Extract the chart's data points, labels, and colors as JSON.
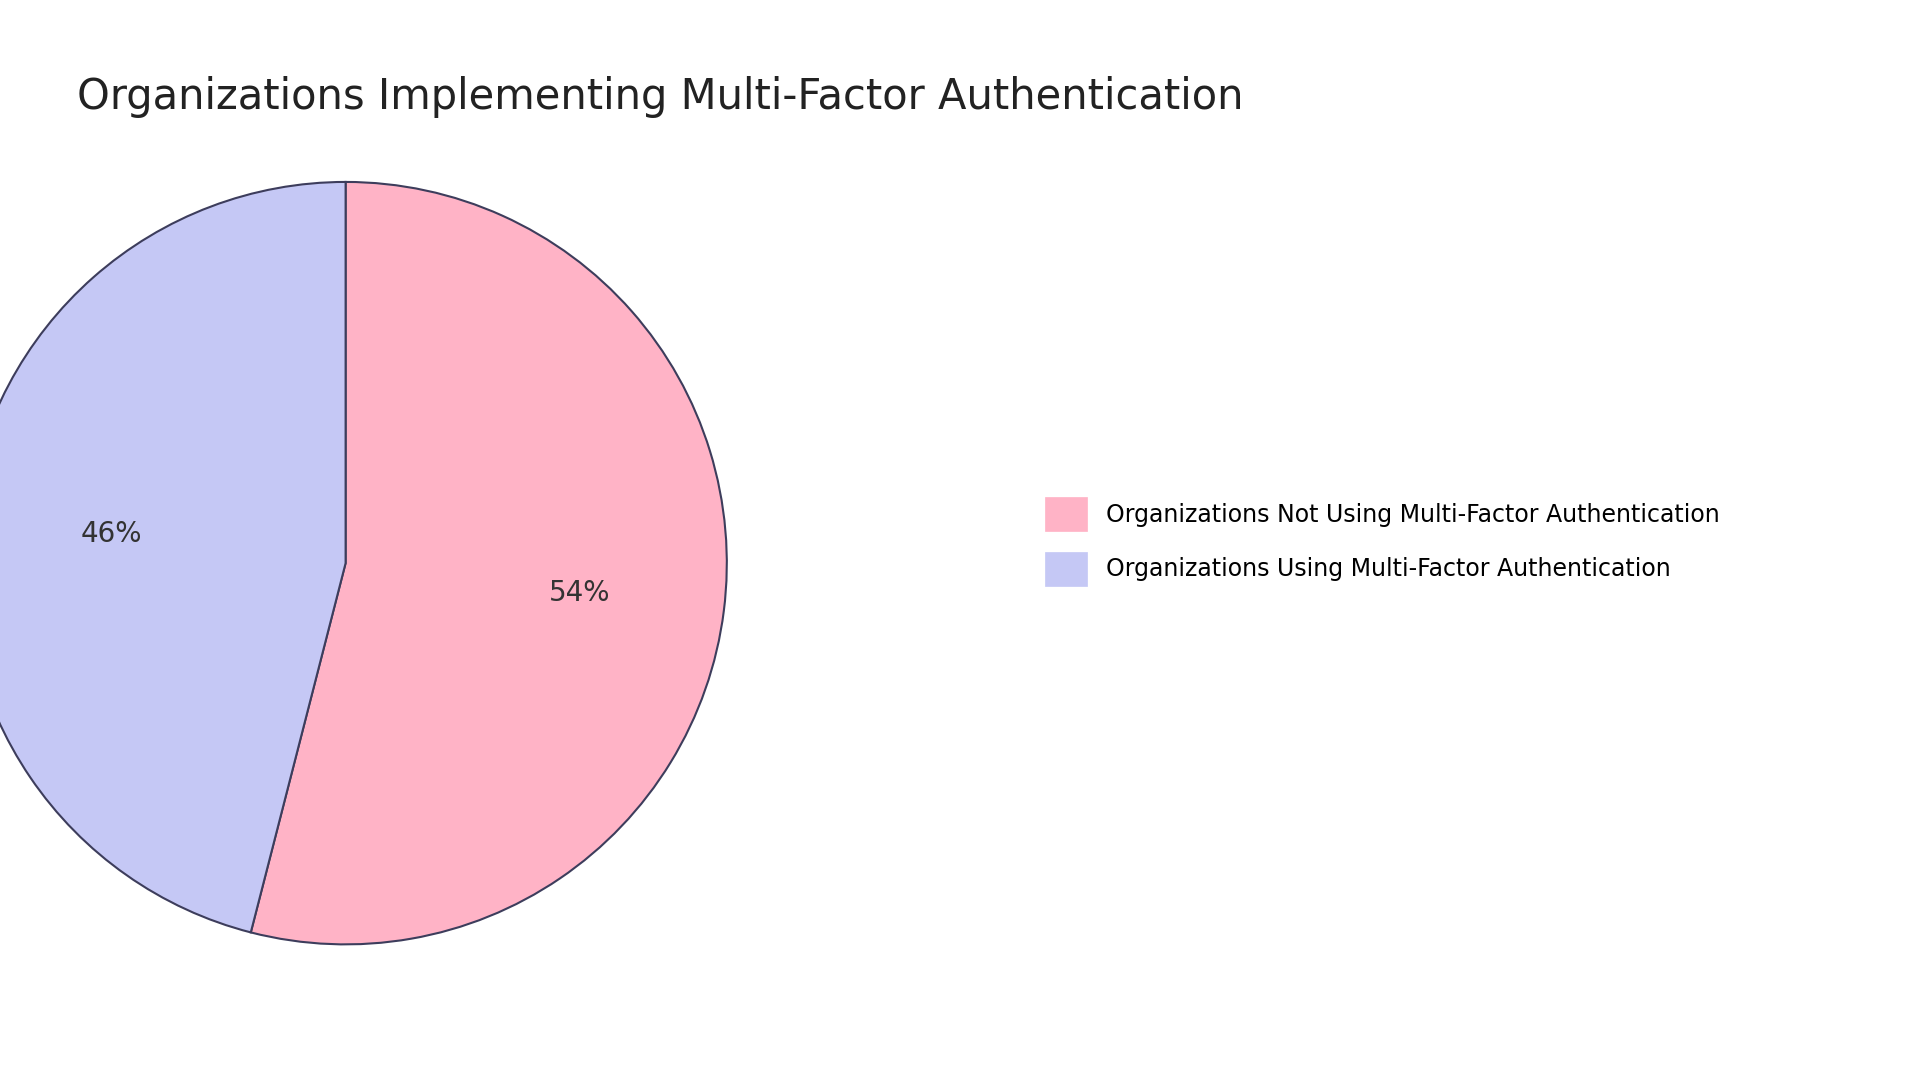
{
  "title": "Organizations Implementing Multi-Factor Authentication",
  "slices": [
    54,
    46
  ],
  "labels": [
    "54%",
    "46%"
  ],
  "colors": [
    "#FFB3C6",
    "#C5C8F5"
  ],
  "legend_labels": [
    "Organizations Not Using Multi-Factor Authentication",
    "Organizations Using Multi-Factor Authentication"
  ],
  "edge_color": "#3d3d5c",
  "background_color": "#ffffff",
  "title_fontsize": 30,
  "label_fontsize": 20,
  "legend_fontsize": 17,
  "startangle": 90
}
